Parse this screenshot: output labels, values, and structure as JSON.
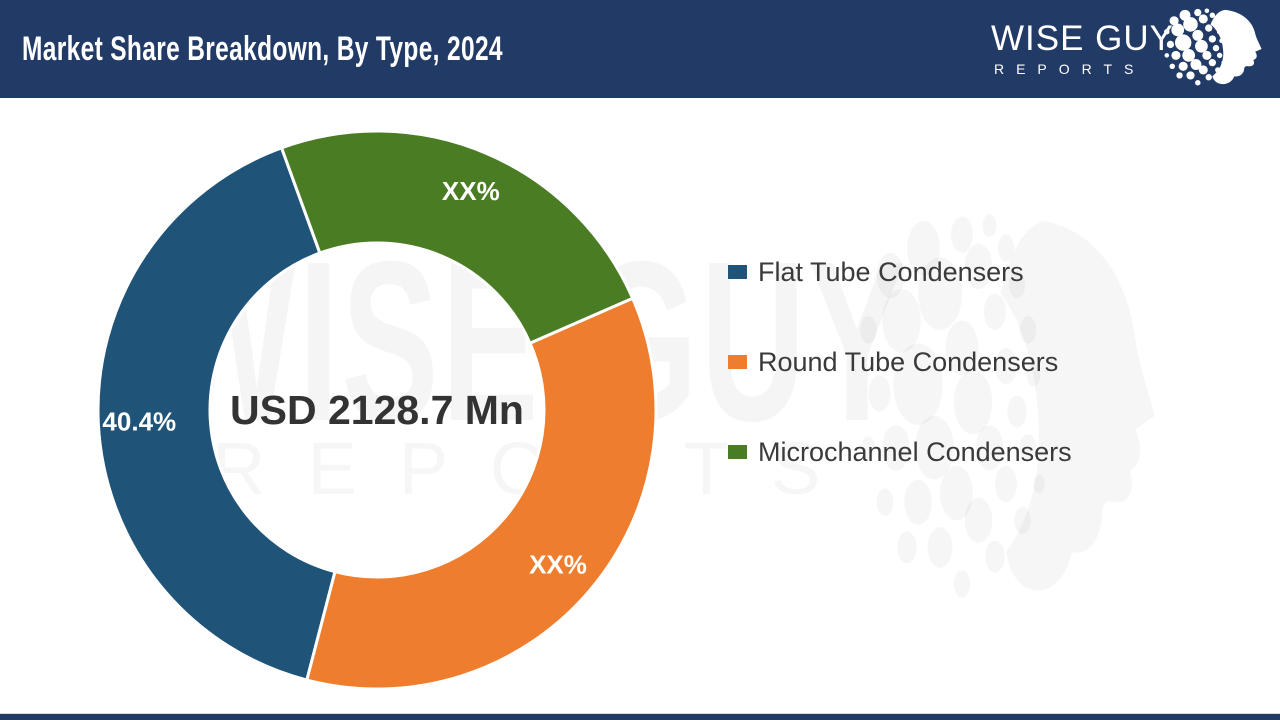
{
  "header": {
    "title": "Market Share Breakdown, By Type, 2024",
    "logo": {
      "line1": "WISE GUY",
      "line2": "REPORTS"
    }
  },
  "watermark": {
    "line1": "WISE GUY",
    "line2": "REPORTS"
  },
  "colors": {
    "header_bg": "#213a66",
    "bottom_bar": "#213a66",
    "title_text": "#ffffff",
    "legend_text": "#3a3a3a",
    "center_text": "#333333",
    "percent_label": "#ffffff",
    "watermark": "#f3f3f3"
  },
  "chart_data": {
    "type": "pie",
    "subtype": "donut",
    "title": "Market Share Breakdown, By Type, 2024",
    "center_text": "USD 2128.7 Mn",
    "start_angle_deg": 110,
    "direction": "counterclockwise",
    "legend_position": "right",
    "segments": [
      {
        "label": "Flat Tube Condensers",
        "display_label": "40.4%",
        "value_pct": 40.4,
        "color": "#1f5378"
      },
      {
        "label": "Round Tube Condensers",
        "display_label": "XX%",
        "value_pct": 35.6,
        "color": "#ee7d2e",
        "note": "shown masked as XX%; arc geometry ≈ 35.6%"
      },
      {
        "label": "Microchannel Condensers",
        "display_label": "XX%",
        "value_pct": 24.0,
        "color": "#4a7c24",
        "note": "shown masked as XX%; arc geometry ≈ 24.0%"
      }
    ]
  }
}
